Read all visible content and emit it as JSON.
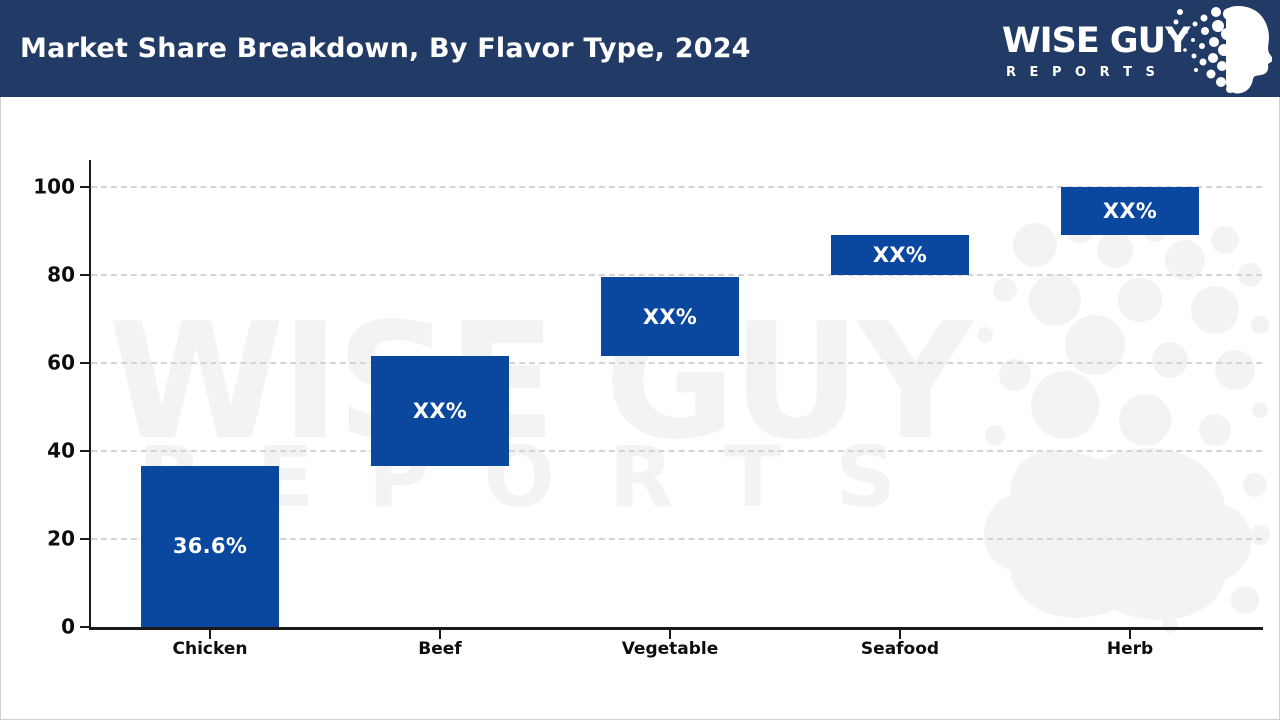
{
  "header": {
    "title": "Market Share Breakdown, By Flavor Type, 2024",
    "logo": {
      "line1": "WISE GUY",
      "line2": "R E P O R T S"
    }
  },
  "watermark": {
    "line1": "WISE GUY",
    "line2": "REPORTS"
  },
  "colors": {
    "header_bg": "#223A66",
    "bar": "#0A48A0",
    "bar_label": "#ffffff",
    "gridline": "#d4d4d4",
    "watermark": "#f3f3f3"
  },
  "chart_data": {
    "type": "bar",
    "subtype": "waterfall",
    "title": "Market Share Breakdown, By Flavor Type, 2024",
    "categories": [
      "Chicken",
      "Beef",
      "Vegetable",
      "Seafood",
      "Herb"
    ],
    "segments": [
      {
        "category": "Chicken",
        "start": 0,
        "end": 36.6,
        "label": "36.6%"
      },
      {
        "category": "Beef",
        "start": 36.6,
        "end": 61.5,
        "label": "XX%"
      },
      {
        "category": "Vegetable",
        "start": 61.5,
        "end": 79.5,
        "label": "XX%"
      },
      {
        "category": "Seafood",
        "start": 80,
        "end": 89,
        "label": "XX%"
      },
      {
        "category": "Herb",
        "start": 89.2,
        "end": 100,
        "label": "XX%"
      }
    ],
    "xlabel": "",
    "ylabel": "",
    "ylim": [
      0,
      100
    ],
    "yticks": [
      0,
      20,
      40,
      60,
      80,
      100
    ],
    "grid": "horizontal-dashed",
    "legend": "none"
  }
}
